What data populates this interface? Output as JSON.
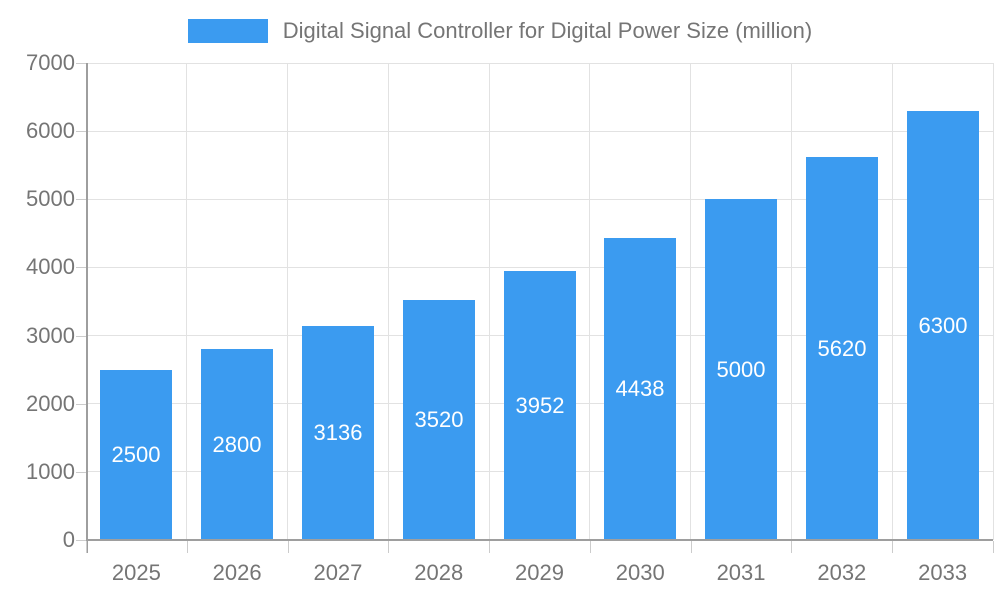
{
  "chart_data": {
    "type": "bar",
    "title": "Digital Signal Controller for Digital Power Size (million)",
    "categories": [
      "2025",
      "2026",
      "2027",
      "2028",
      "2029",
      "2030",
      "2031",
      "2032",
      "2033"
    ],
    "values": [
      2500,
      2800,
      3136,
      3520,
      3952,
      4438,
      5000,
      5620,
      6300
    ],
    "xlabel": "",
    "ylabel": "",
    "ylim": [
      0,
      7000
    ],
    "yticks": [
      0,
      1000,
      2000,
      3000,
      4000,
      5000,
      6000,
      7000
    ],
    "grid": true,
    "legend_position": "top",
    "bar_color": "#3b9bf0",
    "value_label_color": "#ffffff",
    "axis_text_color": "#757575",
    "grid_color": "#e2e2e2",
    "axis_line_color": "#9e9e9e",
    "background": "#ffffff"
  }
}
